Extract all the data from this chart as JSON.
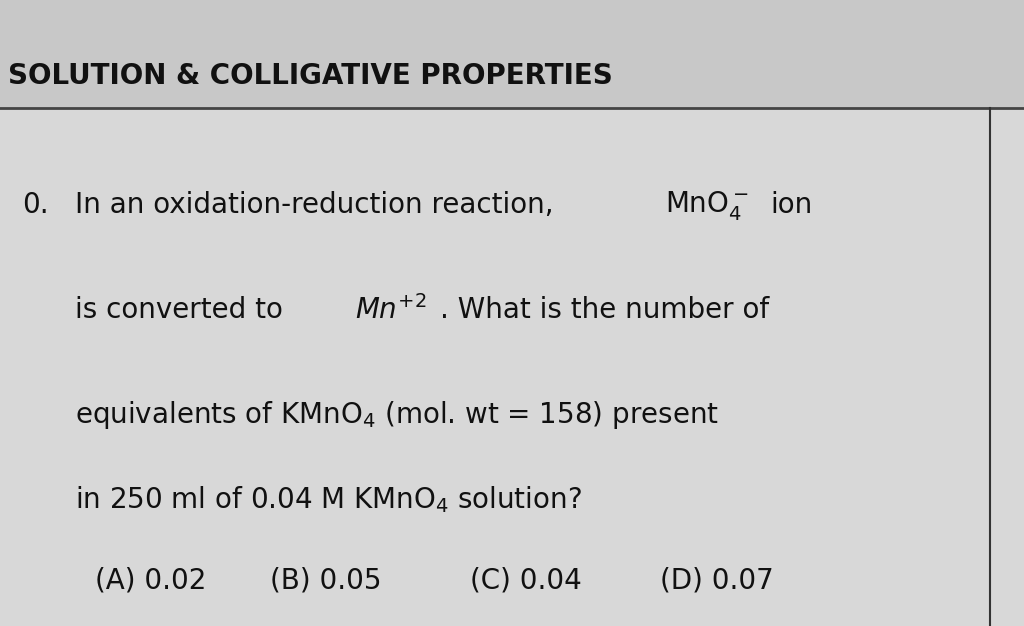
{
  "bg_top": "#c8c8c8",
  "bg_content": "#d8d8d8",
  "header_text": "SOLUTION & COLLIGATIVE PROPERTIES",
  "header_fontsize": 20,
  "header_color": "#111111",
  "body_fontsize": 20,
  "options_fontsize": 20,
  "text_color": "#111111",
  "divider_color": "#444444",
  "right_border_color": "#333333",
  "q_num": "0.",
  "line1_pre": "In an oxidation-reduction reaction,",
  "line1_chem": "$\\mathrm{MnO}_4^-$",
  "line1_post": "ion",
  "line2_pre": "is converted to",
  "line2_chem": "$\\mathit{Mn}^{+2}$",
  "line2_post": ". What is the number of",
  "line3": "equivalents of $\\mathrm{KMnO}_4$ (mol. wt = 158) present",
  "line4": "in 250 ml of 0.04 M $\\mathrm{KMnO}_4$ solution?",
  "optA": "(A) 0.02",
  "optB": "(B) 0.05",
  "optC": "(C) 0.04",
  "optD": "(D) 0.07"
}
